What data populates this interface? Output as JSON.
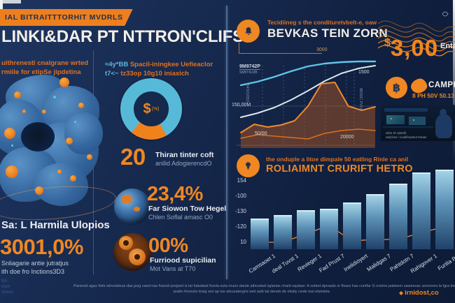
{
  "colors": {
    "accent_orange": "#ef8722",
    "accent_blue": "#57b9d8",
    "background": "#16294e",
    "heading_white": "#f2efe8"
  },
  "page": {
    "badge": "IAL BITRAITTTORHIT MVDRLS",
    "title": "LINKI&DAR PT NTTRON'CLIFS",
    "footer_line1": "Parsoed agas foits wtrvvlalesa das jasg vaed nas foarutt prejsert is lar futedawt forola suta rnuen darde attivudad oglarias charb equtasr. A sofant dproado or flears has contfar G ovetos patteern saweevac wornores la fgra trealet.",
    "footer_line2": "pratin forvests toisg wst ap tse aleuzatergris eeit asib tat deneb de elistty civds tosl elsieteta.",
    "brand_icon": "◆",
    "brand": "irnidost,co"
  },
  "left": {
    "intro_line1": "uithrenesti cnalgrane wrted",
    "intro_line2": "rmiile for etipSe jipdetina",
    "stat_heading": "Sa: L Harmila Ulopios",
    "stat_value": "3001,0%",
    "stat_note1": "Snliagarie antie jutratjus",
    "stat_note2": "ith doe fro Inctions3D3",
    "tiny1": "BA",
    "tiny2": "sion",
    "tiny3": "itiums"
  },
  "middle": {
    "intro1_prefix": "≈4y*BB",
    "intro_line1": "Spacil-iningkee Uefieaclor",
    "intro2_prefix": "t7<~",
    "intro_line2": "tz33op 10g10 iniaxich",
    "donut": {
      "symbol": "$",
      "symbol_sub": "(%)",
      "percent_orange": 19,
      "start_deg": 150,
      "sweep_deg": 70,
      "color_blue": "#57b9d8",
      "color_orange": "#f0821e"
    },
    "stat1": {
      "value": "20",
      "label": "Thiran tinter coft",
      "sub": "anilid AdogierencdO"
    },
    "stat2": {
      "value": "23,4%",
      "label": "Far Siowon Tow Hegel",
      "sub": "Chlen Soflal amasc O0"
    },
    "stat3": {
      "value": "00%",
      "label": "Furriood supicilian",
      "sub": "Mot Vans at T70"
    }
  },
  "right": {
    "section1": {
      "kicker": "Tecidiineg s the condituretvbelt-e, oaw",
      "heading": "BEVKAS TEIN ZORN"
    },
    "price": {
      "currency": "$",
      "value": "3,00",
      "suffix": "Entare"
    },
    "campaign": {
      "coin_symbol": "฿",
      "label": "CAMPIAR",
      "sub": "8 PH 50V 50.13"
    },
    "photo_caption1": "wfse al' adazfit",
    "photo_caption2": "atrijzkas i vvakifsadeot tirtaas",
    "section2": {
      "kicker": "the onduple a litoe dimpale 50 eatling Rinle ca anil",
      "heading": "ROLIAIMNT CRURIFT HETRO"
    }
  },
  "chart_data": [
    {
      "id": "growth-line-chart",
      "type": "line",
      "grid": "dashed-vertical",
      "legend": "none",
      "tick_labels": {
        "top": "3000",
        "right": "1500",
        "bottom_left": "50/00",
        "bottom_right": "20000",
        "left_top": "9M9742P",
        "left_top_sub": "SM5TRJ2B",
        "left_mid": "150,00M",
        "vert_left": "B4SO/D53",
        "vert_right": "8B50C FVO6"
      },
      "series": [
        {
          "name": "blue-top",
          "color": "#5fc4e8",
          "width": 2.4,
          "values": [
            122,
            117,
            110,
            102,
            95,
            91,
            89,
            88,
            88
          ]
        },
        {
          "name": "white-mid",
          "color": "#dfe8ee",
          "width": 2,
          "values": [
            168,
            162,
            154,
            143,
            130,
            116,
            105,
            98,
            94
          ]
        },
        {
          "name": "orange-volatile",
          "color": "#f08a2c",
          "width": 2,
          "area": true,
          "area_color": "rgba(186,92,30,0.45)",
          "values": [
            190,
            178,
            182,
            179,
            173,
            152,
            120,
            118,
            152,
            158,
            153
          ]
        },
        {
          "name": "orange-low",
          "color": "#d9701e",
          "width": 1.5,
          "values": [
            198,
            193,
            195,
            197,
            199,
            191,
            187,
            185,
            187
          ]
        }
      ]
    },
    {
      "id": "rolling-bar-chart",
      "type": "bar",
      "legend": "none",
      "categories": [
        "Camsaoet 1",
        "deal Tuvst 1",
        "Revieger 1",
        "Fad Prust 7",
        "Inelidioyert",
        "Malidgas 7",
        "Pahtdotn 7",
        "Rahigover 1",
        "Funlia Pgt"
      ],
      "values": [
        42,
        47,
        54,
        56,
        65,
        77,
        92,
        108,
        112
      ],
      "yticks": [
        "154",
        "-100",
        "-130",
        "-120",
        "10"
      ],
      "overlay_line": {
        "color": "#f08a2c",
        "marker_fill": "#e8821e",
        "marker_stroke": "#8a4510",
        "values": [
          10,
          10,
          22,
          34,
          12,
          14,
          14,
          24,
          32
        ]
      }
    }
  ]
}
